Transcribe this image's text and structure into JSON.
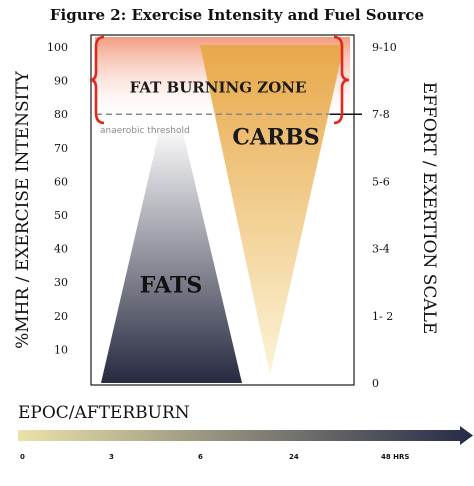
{
  "chart_data": {
    "type": "area",
    "title": "Figure 2: Exercise Intensity and Fuel Source",
    "ylabel": "%MHR / EXERCISE INTENSITY",
    "y2label": "EFFORT / EXERTION SCALE",
    "ylim": [
      0,
      100
    ],
    "y_ticks": [
      10,
      20,
      30,
      40,
      50,
      60,
      70,
      80,
      90,
      100
    ],
    "y2_ticks": [
      {
        "label": "9-10",
        "at": 100
      },
      {
        "label": "7-8",
        "at": 80
      },
      {
        "label": "5-6",
        "at": 60
      },
      {
        "label": "3-4",
        "at": 40
      },
      {
        "label": "1- 2",
        "at": 20
      },
      {
        "label": "0",
        "at": 0
      }
    ],
    "fats": {
      "label": "FATS",
      "apex_intensity": 78,
      "color_top": "#ffffff",
      "color_bottom": "#272a40"
    },
    "carbs": {
      "label": "CARBS",
      "top_intensity": 100,
      "tip_intensity": 0,
      "color_top": "#e8a84a",
      "color_bottom": "#fcf4d8"
    },
    "fat_burning_zone": {
      "label": "FAT BURNING ZONE",
      "range": [
        78,
        100
      ],
      "color": "#f08a6a",
      "bracket_color": "#e0281e"
    },
    "anaerobic_threshold": {
      "label": "anaerobic threshold",
      "value": 80
    },
    "epoc": {
      "title": "EPOC/AFTERBURN",
      "ticks": [
        "0",
        "3",
        "6",
        "24",
        "48 HRS"
      ],
      "color_start": "#ece2a8",
      "color_end": "#252a48"
    }
  }
}
